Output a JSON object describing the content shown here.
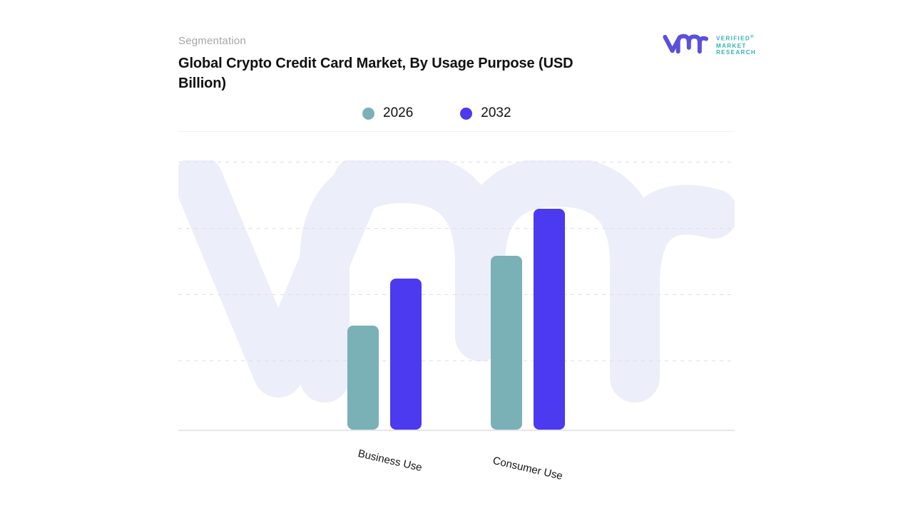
{
  "header": {
    "eyebrow": "Segmentation",
    "title": "Global Crypto Credit Card Market, By Usage Purpose (USD Billion)"
  },
  "logo": {
    "name": "verified-market-research",
    "text_lines": [
      "VERIFIED",
      "MARKET",
      "RESEARCH"
    ],
    "registered_mark": "®",
    "monogram_color": "#5a50dc",
    "text_color": "#2fb3ae"
  },
  "watermark": {
    "glyph": "vmr-monogram",
    "color": "#eceef9"
  },
  "chart_data": {
    "type": "bar",
    "title": "Global Crypto Credit Card Market, By Usage Purpose (USD Billion)",
    "categories": [
      "Business Use",
      "Consumer Use"
    ],
    "series": [
      {
        "name": "2026",
        "color": "#79b1b6",
        "values": [
          1.55,
          2.6
        ]
      },
      {
        "name": "2032",
        "color": "#4b3af0",
        "values": [
          2.25,
          3.3
        ]
      }
    ],
    "xlabel": "",
    "ylabel": "",
    "ylim": [
      0,
      4
    ],
    "y_tick_labels": [],
    "values_unit": "gridline-units (y axis unlabeled in source, values estimated from dashed gridlines)",
    "gridlines": "horizontal-dashed",
    "legend_position": "top-center"
  }
}
